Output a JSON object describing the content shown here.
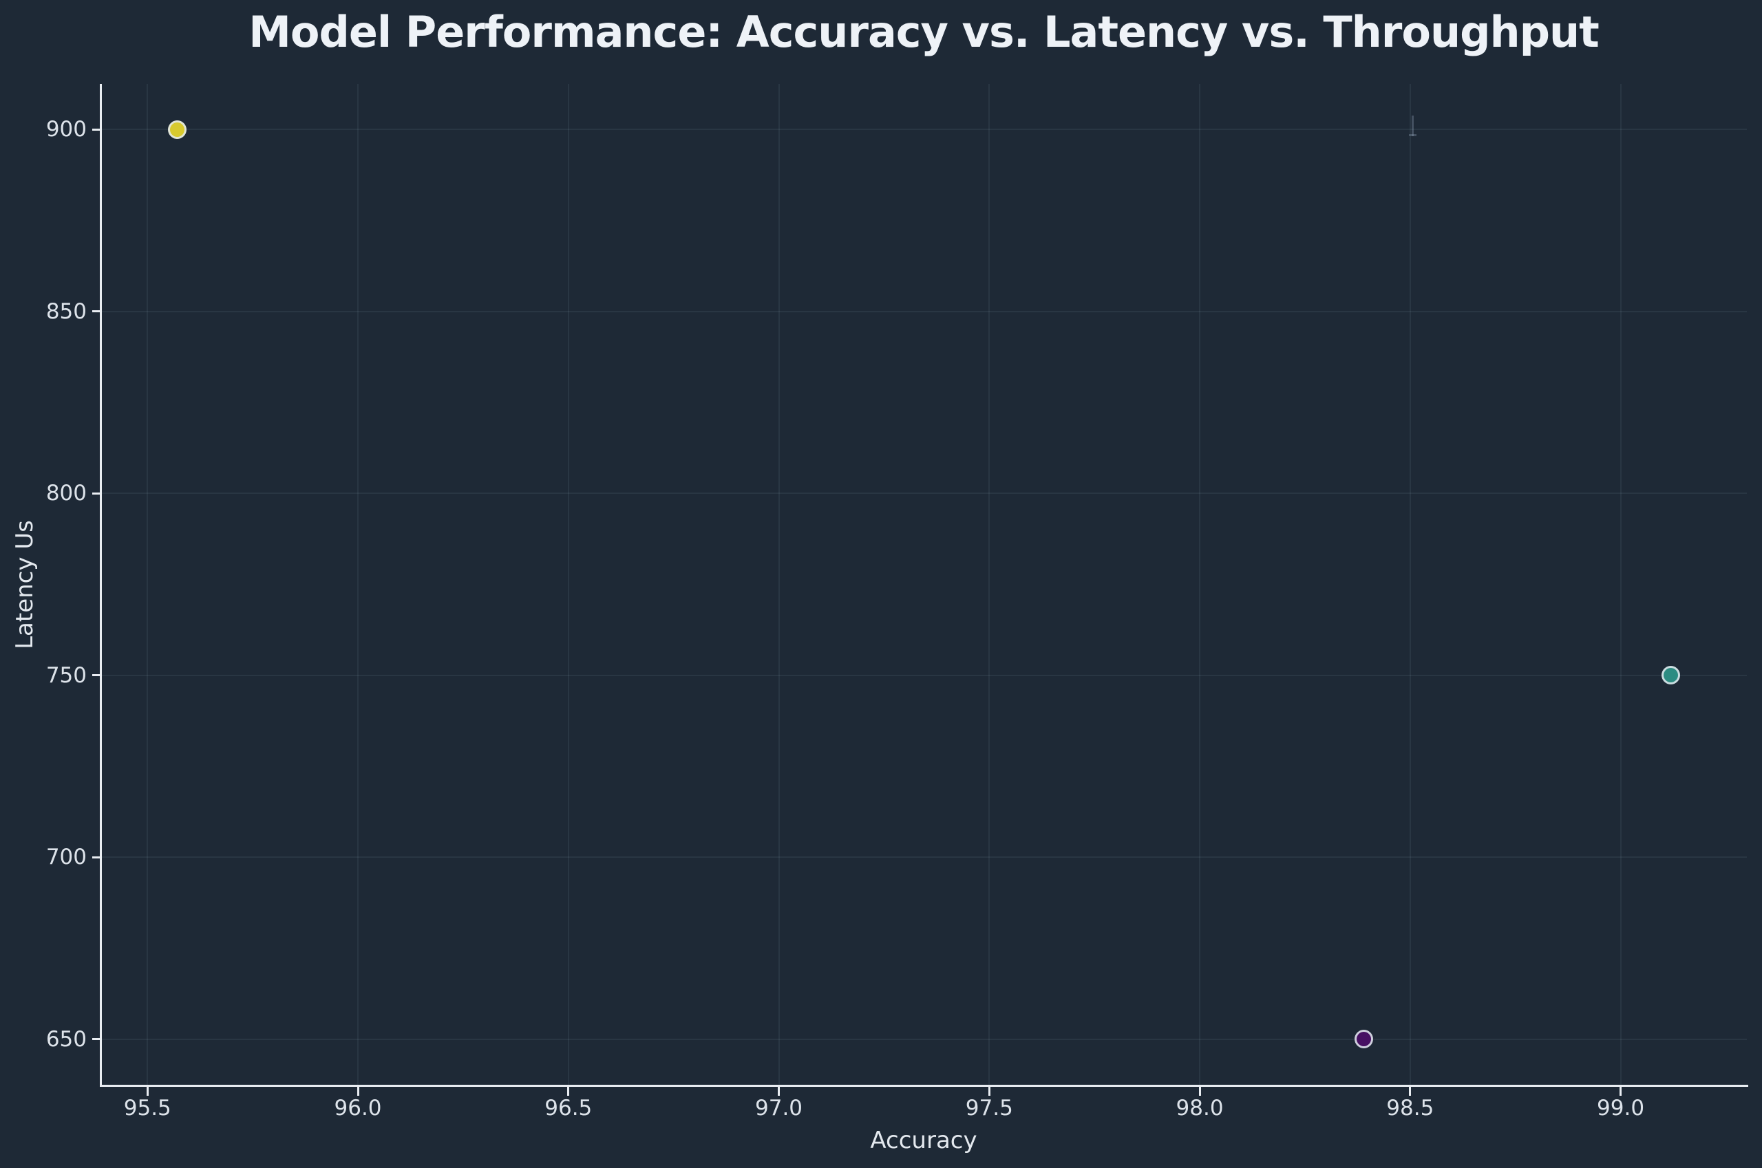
{
  "chart_data": {
    "type": "scatter",
    "title": "Model Performance: Accuracy vs. Latency vs. Throughput",
    "xlabel": "Accuracy",
    "ylabel": "Latency Us",
    "xlim": [
      95.39,
      99.3
    ],
    "ylim": [
      637.5,
      912.5
    ],
    "x_ticks": [
      95.5,
      96.0,
      96.5,
      97.0,
      97.5,
      98.0,
      98.5,
      99.0
    ],
    "x_tick_labels": [
      "95.5",
      "96.0",
      "96.5",
      "97.0",
      "97.5",
      "98.0",
      "98.5",
      "99.0"
    ],
    "y_ticks": [
      650,
      700,
      750,
      800,
      850,
      900
    ],
    "y_tick_labels": [
      "650",
      "700",
      "750",
      "800",
      "850",
      "900"
    ],
    "grid": true,
    "legend_position": "none",
    "color_note": "marker color encodes throughput on a viridis-like scale (purple low, teal mid, yellow high); no colorbar shown",
    "points": [
      {
        "accuracy": 95.57,
        "latency_us": 900,
        "color": "#d8ca2e"
      },
      {
        "accuracy": 98.39,
        "latency_us": 650,
        "color": "#471063"
      },
      {
        "accuracy": 99.12,
        "latency_us": 750,
        "color": "#2c8c82"
      }
    ]
  },
  "style": {
    "background": "#1e2936",
    "spine_color": "#e9edf2",
    "grid_color": "rgba(205,220,240,0.07)",
    "tick_label_color": "#dde3ea",
    "title_color": "#eef2f7",
    "point_edge_color": "rgba(225,232,238,0.88)"
  }
}
